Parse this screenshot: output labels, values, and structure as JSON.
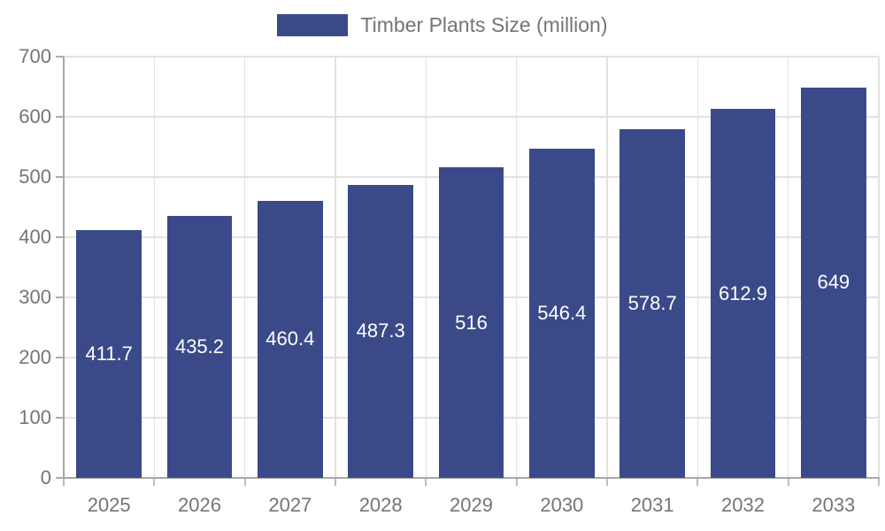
{
  "chart_data": {
    "type": "bar",
    "title": "Timber Plants Size (million)",
    "categories": [
      "2025",
      "2026",
      "2027",
      "2028",
      "2029",
      "2030",
      "2031",
      "2032",
      "2033"
    ],
    "values": [
      411.7,
      435.2,
      460.4,
      487.3,
      516,
      546.4,
      578.7,
      612.9,
      649
    ],
    "xlabel": "",
    "ylabel": "",
    "ylim": [
      0,
      700
    ],
    "yticks": [
      0,
      100,
      200,
      300,
      400,
      500,
      600,
      700
    ],
    "grid": true,
    "bar_value_labels_inside": true,
    "legend": {
      "position": "top",
      "label": "Timber Plants Size (million)"
    },
    "colors": {
      "bar": "#3A4A89",
      "axis": "#A8A8A8",
      "gridline": "#E2E2E2",
      "tick_label": "#757575",
      "bar_label": "#FFFFFF",
      "background": "#FFFFFF"
    }
  }
}
